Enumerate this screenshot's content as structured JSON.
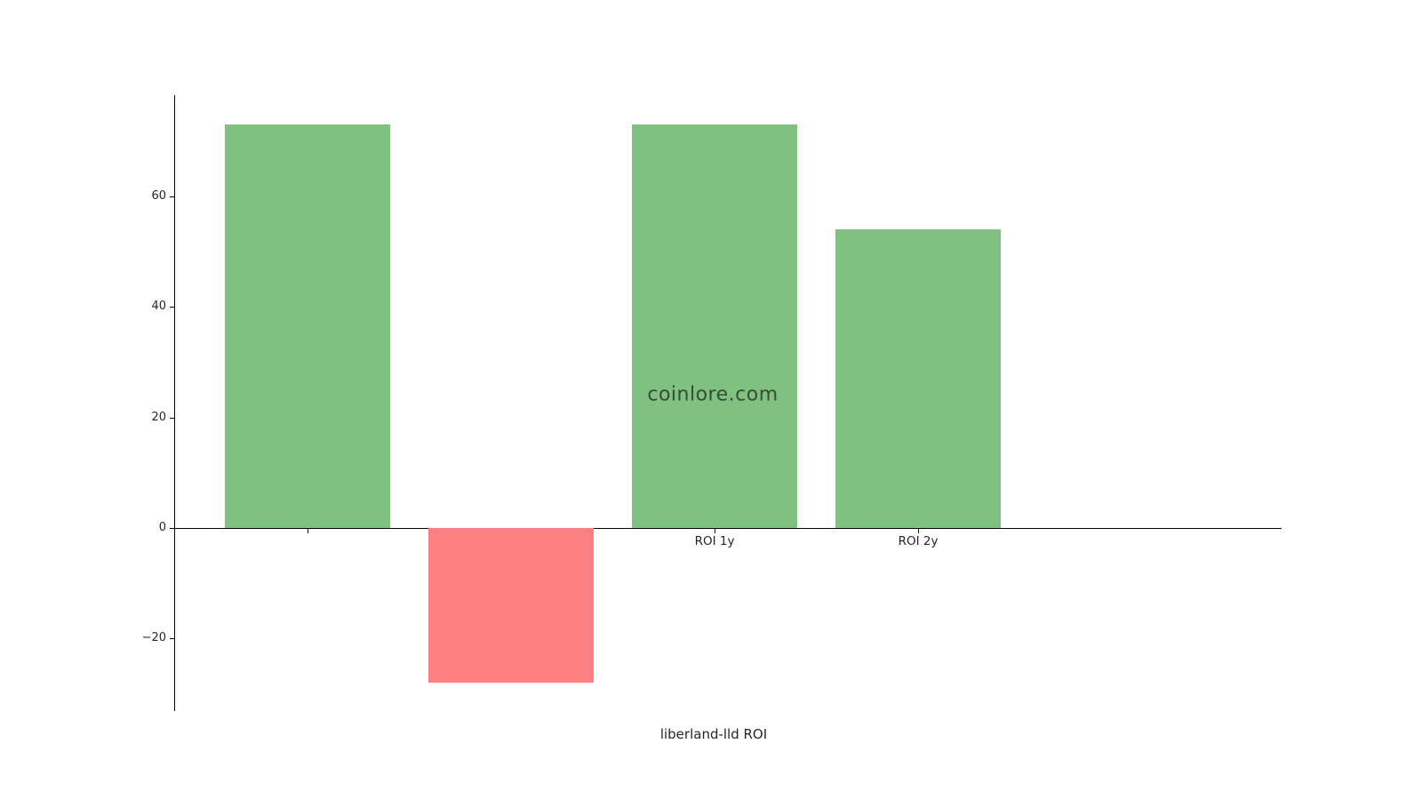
{
  "watermark": "coinlore.com",
  "footer_title": "liberland-lld ROI",
  "colors": {
    "positive_bar": "#80c080",
    "negative_bar": "#ff8080",
    "axis": "#000000",
    "tick_text": "#262626",
    "watermark_text": "rgba(0,0,0,0.60)"
  },
  "chart_data": {
    "type": "bar",
    "title": "liberland-lld ROI",
    "xlabel": "liberland-lld ROI",
    "ylabel": "",
    "categories": [
      "",
      "",
      "ROI 1y",
      "ROI 2y"
    ],
    "values": [
      73,
      -28,
      73,
      54
    ],
    "bar_colors": [
      "#80c080",
      "#ff8080",
      "#80c080",
      "#80c080"
    ],
    "y_ticks": [
      60,
      40,
      20,
      0,
      -20
    ],
    "y_tick_labels": [
      "60",
      "40",
      "20",
      "0",
      "−20"
    ],
    "ylim": [
      -33.1,
      78.3
    ],
    "grid": false,
    "legend_position": "none",
    "annotations": [
      "coinlore.com"
    ]
  }
}
